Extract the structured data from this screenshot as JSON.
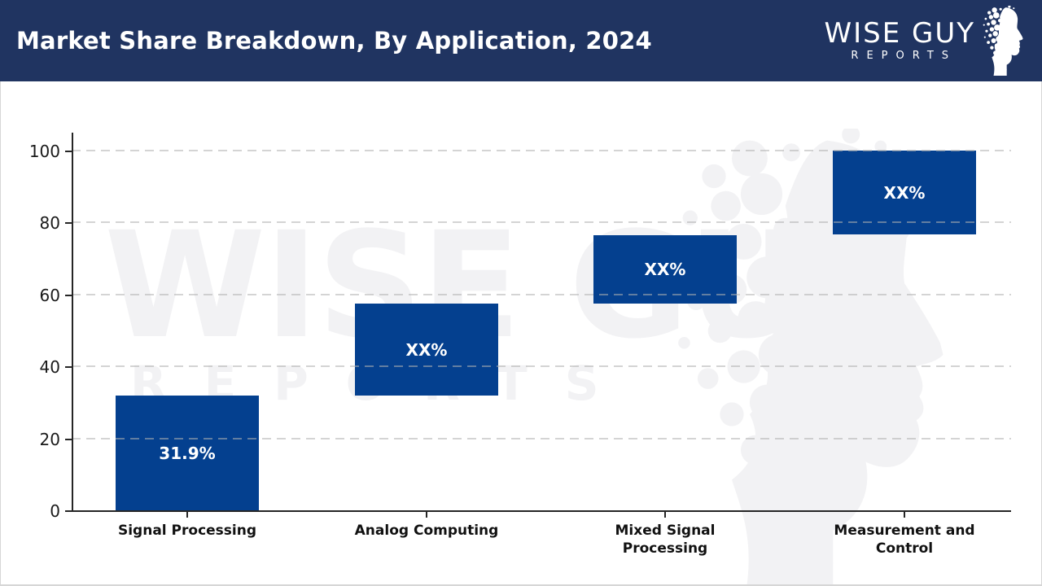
{
  "header": {
    "title": "Market Share Breakdown, By Application, 2024",
    "logo": {
      "line1": "WISE GUY",
      "line2": "REPORTS"
    }
  },
  "watermark": {
    "line1": "WISE GUY",
    "line2": "REPORTS"
  },
  "chart_data": {
    "type": "bar",
    "subtype": "waterfall",
    "title": "Market Share Breakdown, By Application, 2024",
    "categories": [
      "Signal Processing",
      "Analog Computing",
      "Mixed Signal Processing",
      "Measurement and Control"
    ],
    "series": [
      {
        "name": "Market share (%)",
        "segments": [
          {
            "category": "Signal Processing",
            "start": 0,
            "end": 31.9,
            "label": "31.9%"
          },
          {
            "category": "Analog Computing",
            "start": 31.9,
            "end": 57.4,
            "label": "XX%"
          },
          {
            "category": "Mixed Signal Processing",
            "start": 57.4,
            "end": 76.6,
            "label": "XX%"
          },
          {
            "category": "Measurement and Control",
            "start": 76.6,
            "end": 100,
            "label": "XX%"
          }
        ]
      }
    ],
    "xlabel": "",
    "ylabel": "",
    "ylim": [
      0,
      105
    ],
    "yticks": [
      0,
      20,
      40,
      60,
      80,
      100
    ],
    "grid": "horizontal-dashed",
    "legend": "none",
    "bar_color": "#04408f",
    "bar_label_color": "#ffffff",
    "header_color": "#203461",
    "watermark_color": "#f2f2f4"
  }
}
